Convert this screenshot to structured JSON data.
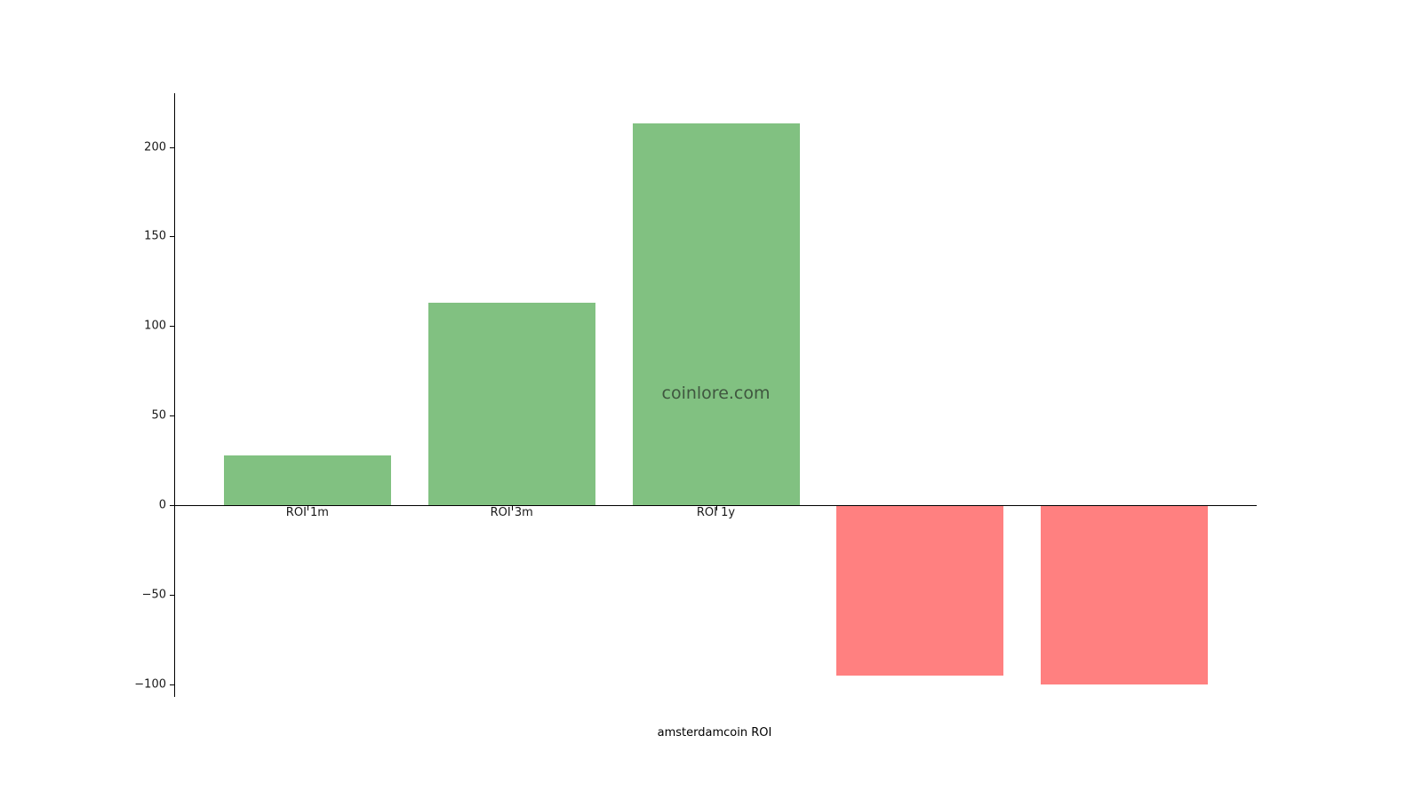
{
  "chart_data": {
    "type": "bar",
    "title": "",
    "xlabel": "amsterdamcoin ROI",
    "ylabel": "",
    "watermark": "coinlore.com",
    "categories": [
      "ROI 1m",
      "ROI 3m",
      "ROI 1y",
      "",
      ""
    ],
    "values": [
      28,
      113,
      213,
      -95,
      -100
    ],
    "ylim": [
      -107,
      230
    ],
    "yticks": [
      200,
      150,
      100,
      50,
      0,
      -50,
      -100
    ],
    "ytick_labels": [
      "200",
      "150",
      "100",
      "50",
      "0",
      "−50",
      "−100"
    ],
    "grid": false,
    "legend_position": "none",
    "colors": {
      "positive_bar": "#81c181",
      "negative_bar": "#ff8080",
      "axis": "#000000",
      "tick_text": "#1a1a1a",
      "watermark_text": "rgba(38,44,38,0.72)",
      "background": "#ffffff"
    }
  }
}
